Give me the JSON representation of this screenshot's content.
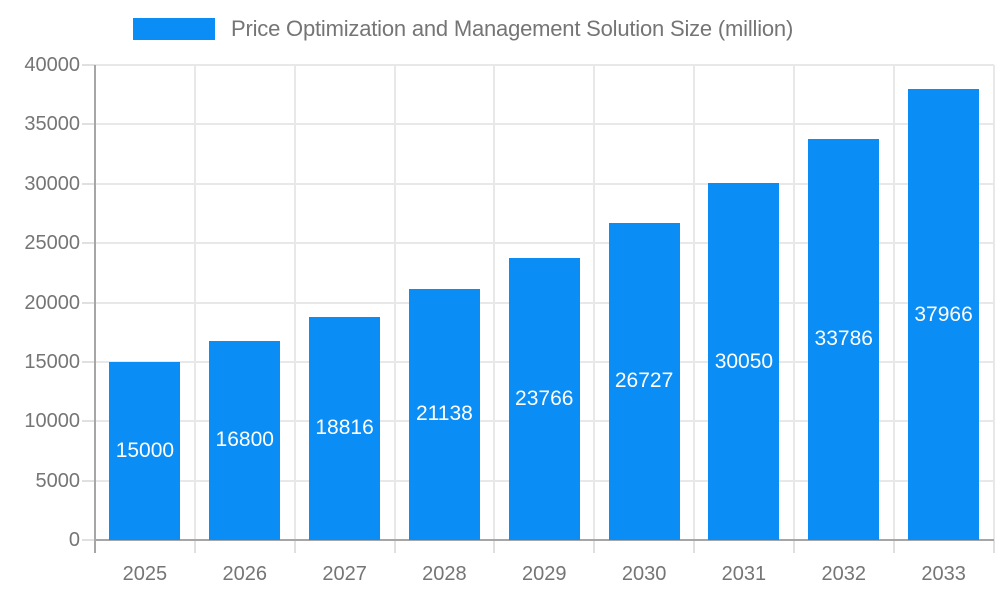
{
  "legend": {
    "label": "Price Optimization and Management Solution Size (million)",
    "swatch_color": "#0A8DF5"
  },
  "chart_data": {
    "type": "bar",
    "title": "Price Optimization and Management Solution Size (million)",
    "categories": [
      "2025",
      "2026",
      "2027",
      "2028",
      "2029",
      "2030",
      "2031",
      "2032",
      "2033"
    ],
    "values": [
      15000,
      16800,
      18816,
      21138,
      23766,
      26727,
      30050,
      33786,
      37966
    ],
    "bar_labels": [
      "15000",
      "16800",
      "18816",
      "21138",
      "23766",
      "26727",
      "30050",
      "33786",
      "37966"
    ],
    "xlabel": "",
    "ylabel": "",
    "ylim": [
      0,
      40000
    ],
    "yticks": [
      0,
      5000,
      10000,
      15000,
      20000,
      25000,
      30000,
      35000,
      40000
    ],
    "ytick_labels": [
      "0",
      "5000",
      "10000",
      "15000",
      "20000",
      "25000",
      "30000",
      "35000",
      "40000"
    ],
    "grid": true,
    "legend_position": "top"
  },
  "colors": {
    "bar": "#0A8DF5",
    "axis": "#A6A6A6",
    "grid": "#E8E8E8",
    "tick": "#E0E0E0",
    "label_text": "#757575",
    "bar_label": "#FFFFFF",
    "background": "#FFFFFF"
  }
}
